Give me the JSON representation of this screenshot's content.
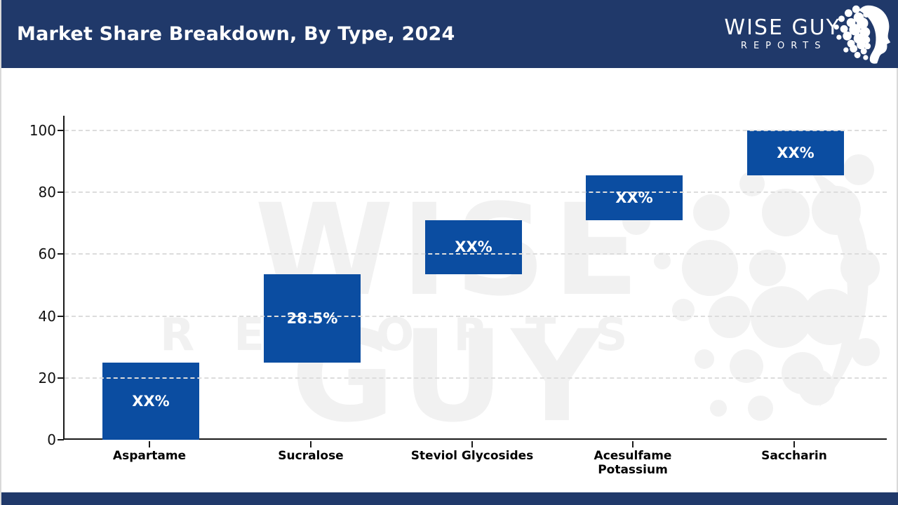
{
  "header": {
    "title": "Market Share Breakdown, By Type, 2024"
  },
  "logo": {
    "line1": "WISE GUY",
    "line2": "REPORTS",
    "face_icon": "dotted-head-profile"
  },
  "watermark": {
    "line1": "WISE GUY",
    "line2": "REPORTS"
  },
  "colors": {
    "navy": "#20396a",
    "bar_blue": "#0b4da1",
    "grid_gray": "#dcdcdc",
    "axis_black": "#1a1a1a",
    "watermark_gray": "#f1f1f1",
    "label_white": "#ffffff"
  },
  "chart_data": {
    "type": "bar",
    "subtype": "waterfall",
    "title": "Market Share Breakdown, By Type, 2024",
    "categories": [
      "Aspartame",
      "Sucralose",
      "Steviol Glycosides",
      "Acesulfame\nPotassium",
      "Saccharin"
    ],
    "segments": [
      {
        "category": "Aspartame",
        "start": 0,
        "end": 25,
        "label": "XX%"
      },
      {
        "category": "Sucralose",
        "start": 25,
        "end": 53.5,
        "label": "28.5%"
      },
      {
        "category": "Steviol Glycosides",
        "start": 53.5,
        "end": 71,
        "label": "XX%"
      },
      {
        "category": "Acesulfame Potassium",
        "start": 71,
        "end": 85.5,
        "label": "XX%"
      },
      {
        "category": "Saccharin",
        "start": 85.5,
        "end": 100,
        "label": "XX%"
      }
    ],
    "ylim": [
      0,
      100
    ],
    "yticks": [
      0,
      20,
      40,
      60,
      80,
      100
    ],
    "xlabel": "",
    "ylabel": "",
    "grid": "horizontal-dashed",
    "grid_above_bars": true,
    "legend": null,
    "bar_color": "#0b4da1"
  }
}
